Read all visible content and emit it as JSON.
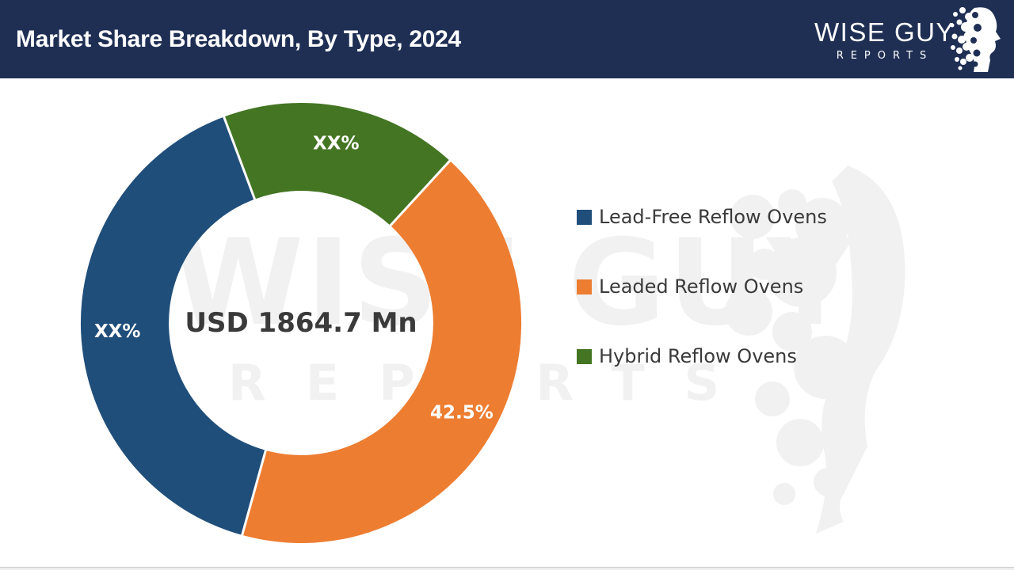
{
  "header": {
    "title": "Market Share Breakdown, By Type, 2024",
    "logo": {
      "line1": "WISE GUY",
      "line2": "REPORTS"
    }
  },
  "watermark": {
    "line1": "WISE GUY",
    "line2": "REPORTS"
  },
  "chart_data": {
    "type": "pie",
    "subtype": "donut",
    "title": "Market Share Breakdown, By Type, 2024",
    "center_label": "USD 1864.7 Mn",
    "unit": "percent share of market, 2024",
    "start_angle_deg": -20.5,
    "inner_radius_ratio": 0.6,
    "legend_position": "right",
    "series": [
      {
        "name": "Lead-Free Reflow Ovens",
        "label": "XX%",
        "pct": 40.0,
        "color": "#204e7a"
      },
      {
        "name": "Leaded Reflow Ovens",
        "label": "42.5%",
        "pct": 42.5,
        "color": "#ed7d31"
      },
      {
        "name": "Hybrid Reflow Ovens",
        "label": "XX%",
        "pct": 17.5,
        "color": "#447523"
      }
    ],
    "draw_order": [
      2,
      1,
      0
    ]
  },
  "colors": {
    "header_bg": "#1f2f54",
    "text_dark": "#3a3a3a",
    "watermark": "#f1f1f1",
    "slice_gap": "#ffffff"
  }
}
